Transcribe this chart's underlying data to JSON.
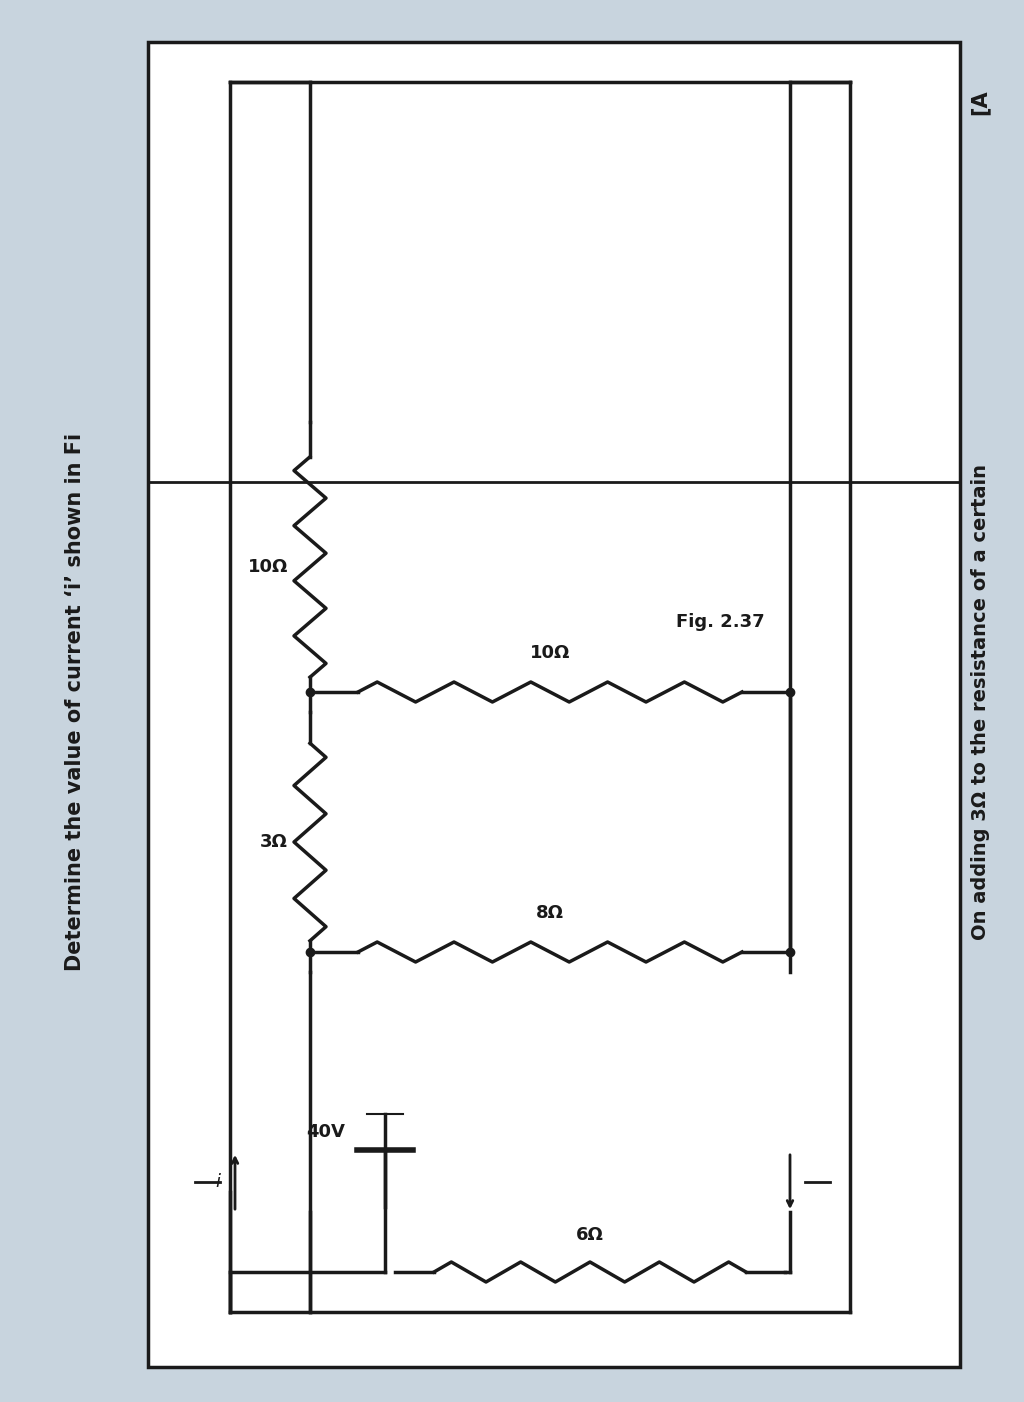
{
  "page_bg": "#c8d4de",
  "line_color": "#1a1a1a",
  "white": "#ffffff",
  "font_size_title": 15,
  "font_size_resistor": 13,
  "font_size_fig": 13,
  "font_size_bottom": 14,
  "title_text": "Determine the value of current ‘i’ shown in Fi",
  "bracket_text": "[A",
  "fig_label": "Fig. 2.37",
  "bottom_text": "On adding 3Ω to the resistance of a certain"
}
